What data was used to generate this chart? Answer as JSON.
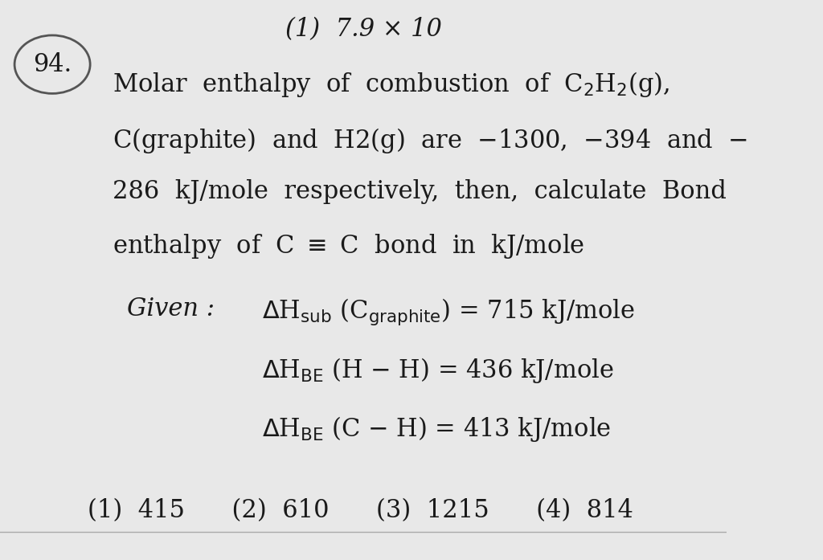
{
  "bg_color": "#e8e8e8",
  "question_number": "94.",
  "circle_color": "#d0d0d0",
  "text_color": "#1a1a1a",
  "line1": "Molar  enthalpy  of  combustion  of  C",
  "line1_sup1": "2",
  "line1_sub1": "",
  "c2h2": "C₂H₂(g),",
  "line2": "C(graphite)  and  H2(g)  are  −1300,  −394  and  −",
  "line3": "286  kJ/mole  respectively,  then,  calculate  Bond",
  "line4": "enthalpy  of  C ≡ C  bond  in  kJ/mole",
  "given_label": "Given :",
  "given1_main": "ΔH",
  "given1_sub": "sub",
  "given1_rest": " (C",
  "given1_sub2": "graphite",
  "given1_end": ") = 715 kJ/mole",
  "given2_main": "ΔH",
  "given2_sub": "BE",
  "given2_rest": " (H − H) = 436 kJ/mole",
  "given3_main": "ΔH",
  "given3_sub": "BE",
  "given3_rest": " (C − H) = 413 kJ/mole",
  "options": "(1)  415      (2)  610      (3)  1215      (4)  814",
  "top_text": "(1)  7.9 × 10",
  "font_size_main": 22,
  "font_size_options": 22
}
